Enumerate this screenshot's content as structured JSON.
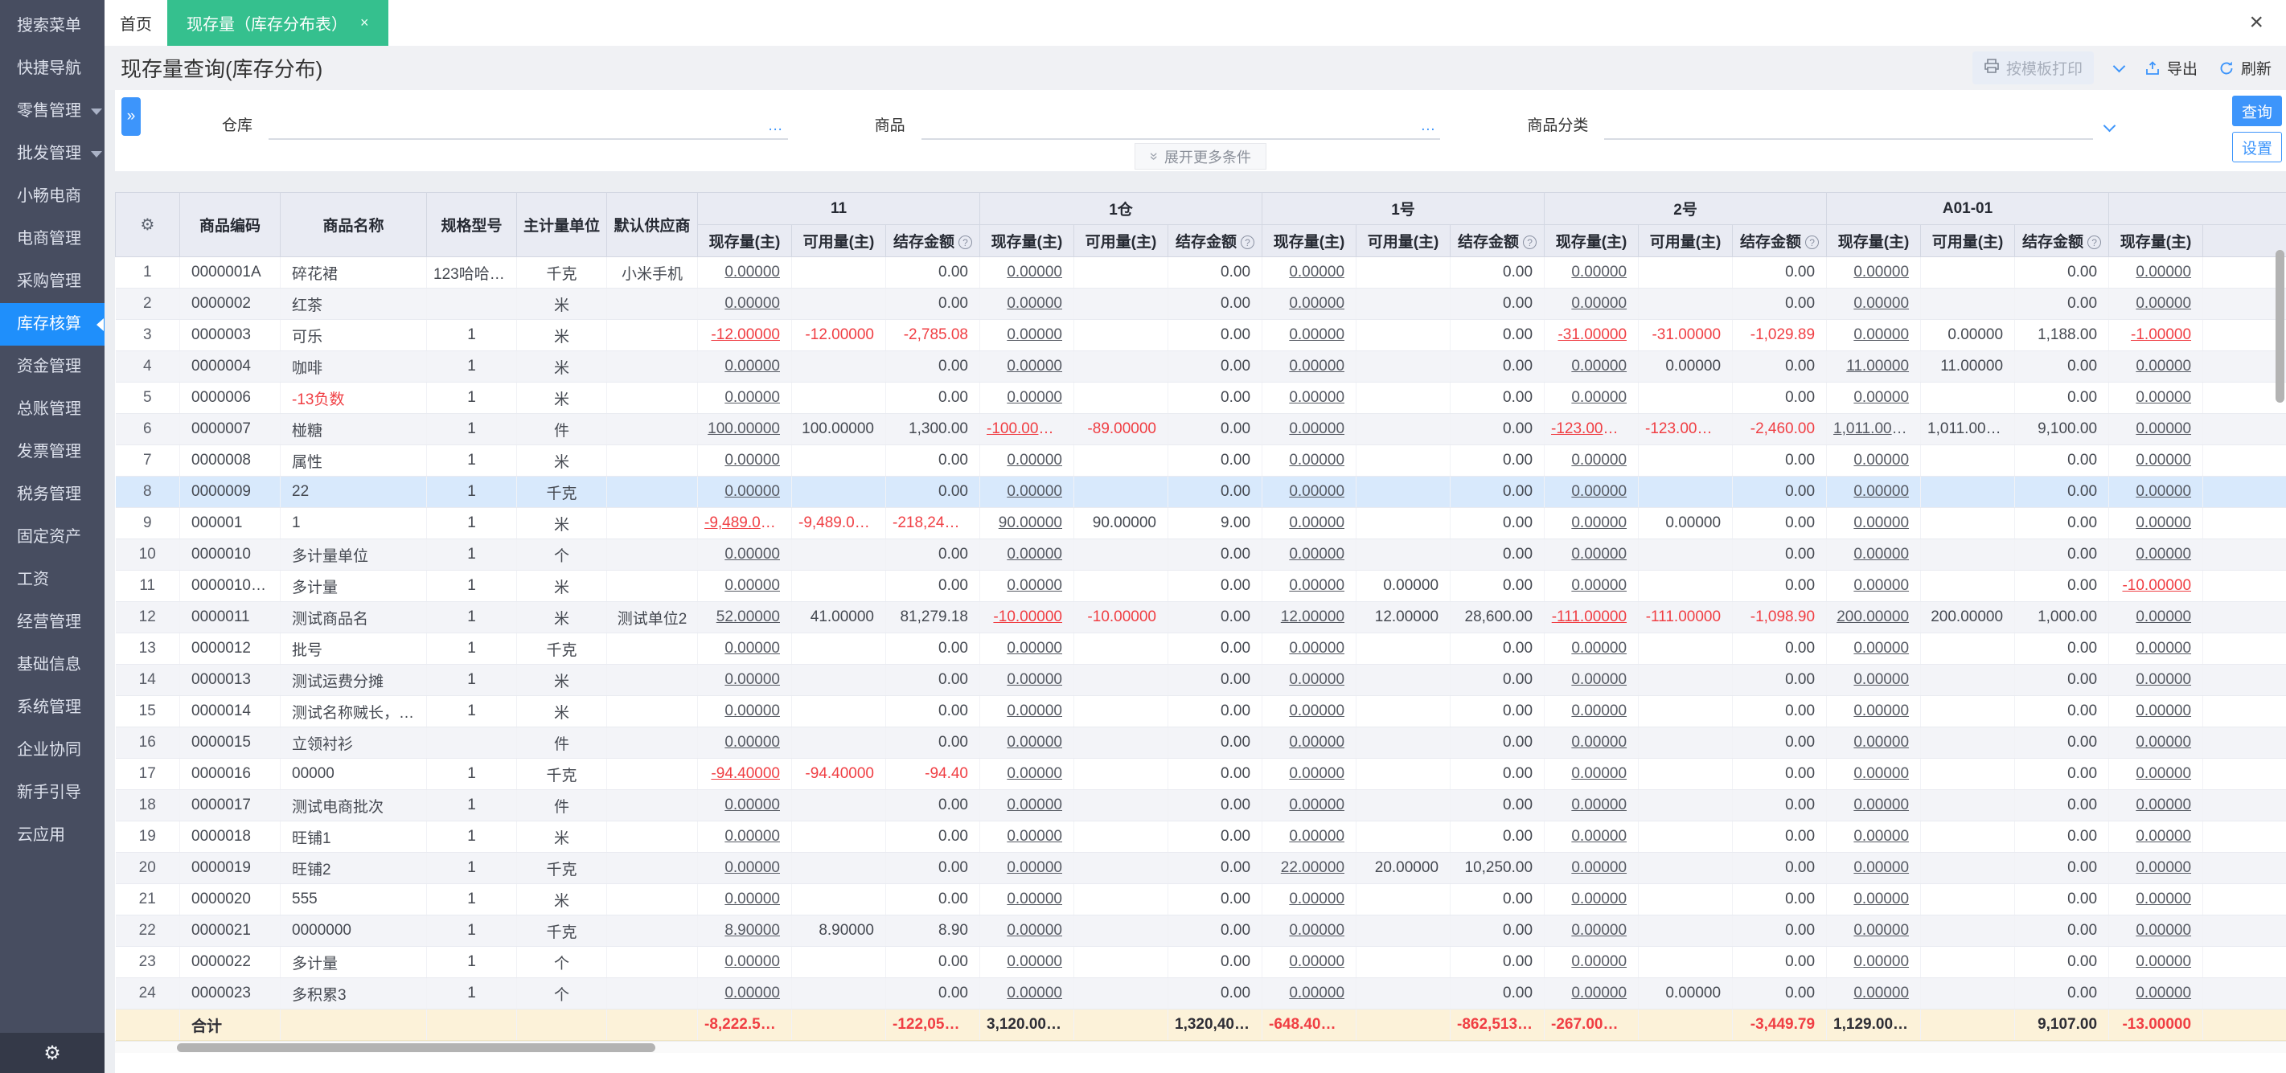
{
  "sidebar": {
    "items": [
      {
        "label": "搜索菜单"
      },
      {
        "label": "快捷导航"
      },
      {
        "label": "零售管理",
        "caret": true
      },
      {
        "label": "批发管理",
        "caret": true
      },
      {
        "label": "小畅电商"
      },
      {
        "label": "电商管理"
      },
      {
        "label": "采购管理"
      },
      {
        "label": "库存核算",
        "active": true
      },
      {
        "label": "资金管理"
      },
      {
        "label": "总账管理"
      },
      {
        "label": "发票管理"
      },
      {
        "label": "税务管理"
      },
      {
        "label": "固定资产"
      },
      {
        "label": "工资"
      },
      {
        "label": "经营管理"
      },
      {
        "label": "基础信息"
      },
      {
        "label": "系统管理"
      },
      {
        "label": "企业协同"
      },
      {
        "label": "新手引导"
      },
      {
        "label": "云应用"
      }
    ],
    "footer_icon": "⚙"
  },
  "tabs": {
    "home": "首页",
    "active_tab": "现存量（库存分布表）",
    "close": "×"
  },
  "window_close": "×",
  "page_title": "现存量查询(库存分布)",
  "toolbar": {
    "print": "按模板打印",
    "export": "导出",
    "refresh": "刷新"
  },
  "filters": {
    "collapse": "»",
    "warehouse": "仓库",
    "product": "商品",
    "category": "商品分类",
    "ellipsis": "…",
    "more": "展开更多条件",
    "more_icon": "»",
    "query": "查询",
    "settings": "设置"
  },
  "table": {
    "corner_icon": "⚙",
    "left_headers": [
      "商品编码",
      "商品名称",
      "规格型号",
      "主计量单位",
      "默认供应商"
    ],
    "sub_headers": {
      "qty": "现存量(主)",
      "avail": "可用量(主)",
      "amount": "结存金额",
      "help": "?"
    },
    "groups": [
      "11",
      "1仓",
      "1号",
      "2号",
      "A01-01",
      ""
    ],
    "rows": [
      {
        "num": 1,
        "code": "0000001A",
        "name": "碎花裙",
        "spec": "123哈哈哈...",
        "unit": "千克",
        "supplier": "小米手机",
        "cells": [
          "0.00000",
          "",
          "0.00",
          "0.00000",
          "",
          "0.00",
          "0.00000",
          "",
          "0.00",
          "0.00000",
          "",
          "0.00",
          "0.00000",
          "",
          "0.00",
          "0.00000"
        ]
      },
      {
        "num": 2,
        "code": "0000002",
        "name": "红茶",
        "spec": "",
        "unit": "米",
        "supplier": "",
        "cells": [
          "0.00000",
          "",
          "0.00",
          "0.00000",
          "",
          "0.00",
          "0.00000",
          "",
          "0.00",
          "0.00000",
          "",
          "0.00",
          "0.00000",
          "",
          "0.00",
          "0.00000"
        ]
      },
      {
        "num": 3,
        "code": "0000003",
        "name": "可乐",
        "spec": "1",
        "unit": "米",
        "supplier": "",
        "cells": [
          "-12.00000",
          "-12.00000",
          "-2,785.08",
          "0.00000",
          "",
          "0.00",
          "0.00000",
          "",
          "0.00",
          "-31.00000",
          "-31.00000",
          "-1,029.89",
          "0.00000",
          "0.00000",
          "1,188.00",
          "-1.00000"
        ]
      },
      {
        "num": 4,
        "code": "0000004",
        "name": "咖啡",
        "spec": "1",
        "unit": "米",
        "supplier": "",
        "cells": [
          "0.00000",
          "",
          "0.00",
          "0.00000",
          "",
          "0.00",
          "0.00000",
          "",
          "0.00",
          "0.00000",
          "0.00000",
          "0.00",
          "11.00000",
          "11.00000",
          "0.00",
          "0.00000"
        ]
      },
      {
        "num": 5,
        "code": "0000006",
        "name": "-13负数",
        "name_red": true,
        "spec": "1",
        "unit": "米",
        "supplier": "",
        "cells": [
          "0.00000",
          "",
          "0.00",
          "0.00000",
          "",
          "0.00",
          "0.00000",
          "",
          "0.00",
          "0.00000",
          "",
          "0.00",
          "0.00000",
          "",
          "0.00",
          "0.00000"
        ]
      },
      {
        "num": 6,
        "code": "0000007",
        "name": "椪糖",
        "spec": "1",
        "unit": "件",
        "supplier": "",
        "cells": [
          "100.00000",
          "100.00000",
          "1,300.00",
          "-100.00000",
          "-89.00000",
          "0.00",
          "0.00000",
          "",
          "0.00",
          "-123.00000",
          "-123.00000",
          "-2,460.00",
          "1,011.00000",
          "1,011.00000",
          "9,100.00",
          "0.00000"
        ]
      },
      {
        "num": 7,
        "code": "0000008",
        "name": "属性",
        "spec": "1",
        "unit": "米",
        "supplier": "",
        "cells": [
          "0.00000",
          "",
          "0.00",
          "0.00000",
          "",
          "0.00",
          "0.00000",
          "",
          "0.00",
          "0.00000",
          "",
          "0.00",
          "0.00000",
          "",
          "0.00",
          "0.00000"
        ]
      },
      {
        "num": 8,
        "code": "0000009",
        "name": "22",
        "spec": "1",
        "unit": "千克",
        "supplier": "",
        "selected": true,
        "cells": [
          "0.00000",
          "",
          "0.00",
          "0.00000",
          "",
          "0.00",
          "0.00000",
          "",
          "0.00",
          "0.00000",
          "",
          "0.00",
          "0.00000",
          "",
          "0.00",
          "0.00000"
        ]
      },
      {
        "num": 9,
        "code": "000001",
        "name": "1",
        "spec": "1",
        "unit": "米",
        "supplier": "",
        "cells": [
          "-9,489.00000",
          "-9,489.000...",
          "-218,247.00",
          "90.00000",
          "90.00000",
          "9.00",
          "0.00000",
          "",
          "0.00",
          "0.00000",
          "0.00000",
          "0.00",
          "0.00000",
          "",
          "0.00",
          "0.00000"
        ]
      },
      {
        "num": 10,
        "code": "0000010",
        "name": "多计量单位",
        "spec": "1",
        "unit": "个",
        "supplier": "",
        "cells": [
          "0.00000",
          "",
          "0.00",
          "0.00000",
          "",
          "0.00",
          "0.00000",
          "",
          "0.00",
          "0.00000",
          "",
          "0.00",
          "0.00000",
          "",
          "0.00",
          "0.00000"
        ]
      },
      {
        "num": 11,
        "code": "000001051...",
        "name": "多计量",
        "spec": "1",
        "unit": "米",
        "supplier": "",
        "cells": [
          "0.00000",
          "",
          "0.00",
          "0.00000",
          "",
          "0.00",
          "0.00000",
          "0.00000",
          "0.00",
          "0.00000",
          "",
          "0.00",
          "0.00000",
          "",
          "0.00",
          "-10.00000"
        ]
      },
      {
        "num": 12,
        "code": "0000011",
        "name": "测试商品名",
        "spec": "1",
        "unit": "米",
        "supplier": "测试单位2",
        "cells": [
          "52.00000",
          "41.00000",
          "81,279.18",
          "-10.00000",
          "-10.00000",
          "0.00",
          "12.00000",
          "12.00000",
          "28,600.00",
          "-111.00000",
          "-111.00000",
          "-1,098.90",
          "200.00000",
          "200.00000",
          "1,000.00",
          "0.00000"
        ]
      },
      {
        "num": 13,
        "code": "0000012",
        "name": "批号",
        "spec": "1",
        "unit": "千克",
        "supplier": "",
        "cells": [
          "0.00000",
          "",
          "0.00",
          "0.00000",
          "",
          "0.00",
          "0.00000",
          "",
          "0.00",
          "0.00000",
          "",
          "0.00",
          "0.00000",
          "",
          "0.00",
          "0.00000"
        ]
      },
      {
        "num": 14,
        "code": "0000013",
        "name": "测试运费分摊",
        "spec": "1",
        "unit": "米",
        "supplier": "",
        "cells": [
          "0.00000",
          "",
          "0.00",
          "0.00000",
          "",
          "0.00",
          "0.00000",
          "",
          "0.00",
          "0.00000",
          "",
          "0.00",
          "0.00000",
          "",
          "0.00",
          "0.00000"
        ]
      },
      {
        "num": 15,
        "code": "0000014",
        "name": "测试名称贼长，然后截...",
        "spec": "1",
        "unit": "米",
        "supplier": "",
        "cells": [
          "0.00000",
          "",
          "0.00",
          "0.00000",
          "",
          "0.00",
          "0.00000",
          "",
          "0.00",
          "0.00000",
          "",
          "0.00",
          "0.00000",
          "",
          "0.00",
          "0.00000"
        ]
      },
      {
        "num": 16,
        "code": "0000015",
        "name": "立领衬衫",
        "spec": "",
        "unit": "件",
        "supplier": "",
        "cells": [
          "0.00000",
          "",
          "0.00",
          "0.00000",
          "",
          "0.00",
          "0.00000",
          "",
          "0.00",
          "0.00000",
          "",
          "0.00",
          "0.00000",
          "",
          "0.00",
          "0.00000"
        ]
      },
      {
        "num": 17,
        "code": "0000016",
        "name": "00000",
        "spec": "1",
        "unit": "千克",
        "supplier": "",
        "cells": [
          "-94.40000",
          "-94.40000",
          "-94.40",
          "0.00000",
          "",
          "0.00",
          "0.00000",
          "",
          "0.00",
          "0.00000",
          "",
          "0.00",
          "0.00000",
          "",
          "0.00",
          "0.00000"
        ]
      },
      {
        "num": 18,
        "code": "0000017",
        "name": "测试电商批次",
        "spec": "1",
        "unit": "件",
        "supplier": "",
        "cells": [
          "0.00000",
          "",
          "0.00",
          "0.00000",
          "",
          "0.00",
          "0.00000",
          "",
          "0.00",
          "0.00000",
          "",
          "0.00",
          "0.00000",
          "",
          "0.00",
          "0.00000"
        ]
      },
      {
        "num": 19,
        "code": "0000018",
        "name": "旺铺1",
        "spec": "1",
        "unit": "米",
        "supplier": "",
        "cells": [
          "0.00000",
          "",
          "0.00",
          "0.00000",
          "",
          "0.00",
          "0.00000",
          "",
          "0.00",
          "0.00000",
          "",
          "0.00",
          "0.00000",
          "",
          "0.00",
          "0.00000"
        ]
      },
      {
        "num": 20,
        "code": "0000019",
        "name": "旺铺2",
        "spec": "1",
        "unit": "千克",
        "supplier": "",
        "cells": [
          "0.00000",
          "",
          "0.00",
          "0.00000",
          "",
          "0.00",
          "22.00000",
          "20.00000",
          "10,250.00",
          "0.00000",
          "",
          "0.00",
          "0.00000",
          "",
          "0.00",
          "0.00000"
        ]
      },
      {
        "num": 21,
        "code": "0000020",
        "name": "555",
        "spec": "1",
        "unit": "米",
        "supplier": "",
        "cells": [
          "0.00000",
          "",
          "0.00",
          "0.00000",
          "",
          "0.00",
          "0.00000",
          "",
          "0.00",
          "0.00000",
          "",
          "0.00",
          "0.00000",
          "",
          "0.00",
          "0.00000"
        ]
      },
      {
        "num": 22,
        "code": "0000021",
        "name": "0000000",
        "spec": "1",
        "unit": "千克",
        "supplier": "",
        "cells": [
          "8.90000",
          "8.90000",
          "8.90",
          "0.00000",
          "",
          "0.00",
          "0.00000",
          "",
          "0.00",
          "0.00000",
          "",
          "0.00",
          "0.00000",
          "",
          "0.00",
          "0.00000"
        ]
      },
      {
        "num": 23,
        "code": "0000022",
        "name": "多计量",
        "spec": "1",
        "unit": "个",
        "supplier": "",
        "cells": [
          "0.00000",
          "",
          "0.00",
          "0.00000",
          "",
          "0.00",
          "0.00000",
          "",
          "0.00",
          "0.00000",
          "",
          "0.00",
          "0.00000",
          "",
          "0.00",
          "0.00000"
        ]
      },
      {
        "num": 24,
        "code": "0000023",
        "name": "多积累3",
        "spec": "1",
        "unit": "个",
        "supplier": "",
        "cells": [
          "0.00000",
          "",
          "0.00",
          "0.00000",
          "",
          "0.00",
          "0.00000",
          "",
          "0.00",
          "0.00000",
          "0.00000",
          "0.00",
          "0.00000",
          "",
          "0.00",
          "0.00000"
        ]
      }
    ],
    "total": {
      "label": "合计",
      "cells": [
        "-8,222.50...",
        "",
        "-122,052.62",
        "3,120.00000",
        "",
        "1,320,409...",
        "-648.40000",
        "",
        "-862,513.24",
        "-267.00000",
        "",
        "-3,449.79",
        "1,129.00000",
        "",
        "9,107.00",
        "-13.00000"
      ]
    }
  },
  "colors": {
    "accent_blue": "#3d95fb",
    "tab_green": "#35c08e",
    "sidebar_bg": "#474d60",
    "sidebar_active": "#1f8ffb",
    "negative_red": "#f03e43",
    "selected_row": "#d8e9fc",
    "total_row_bg": "#fcf2d9",
    "header_bg": "#e9ebf3"
  }
}
